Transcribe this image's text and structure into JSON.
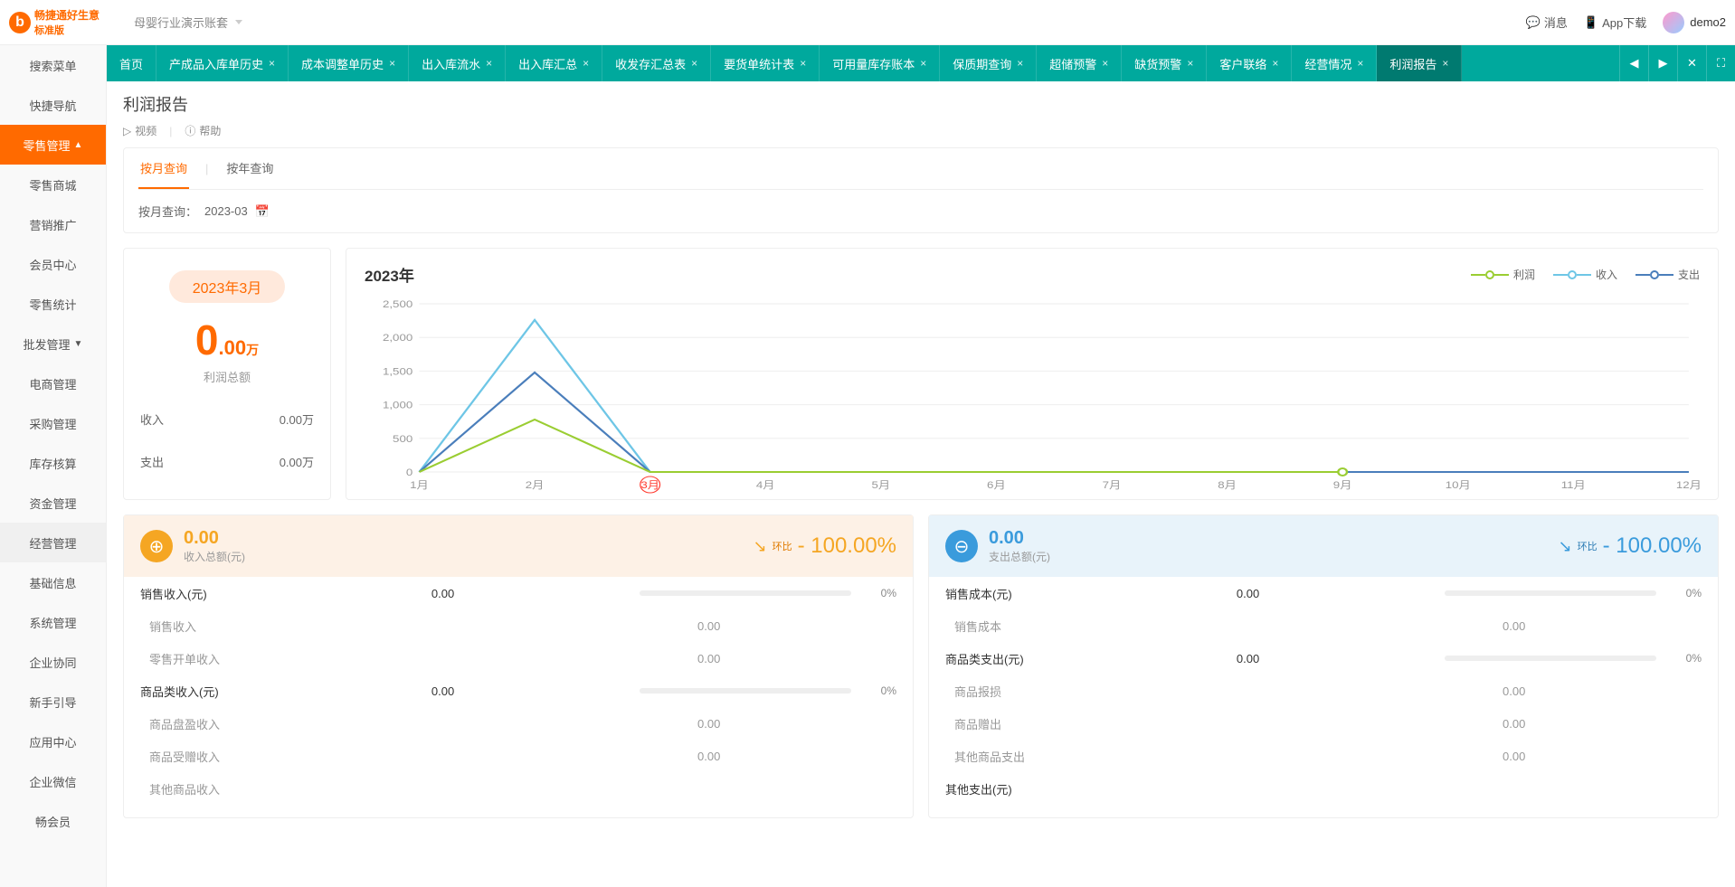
{
  "header": {
    "brand_main": "畅捷通好生意",
    "brand_sub": "标准版",
    "account": "母婴行业演示账套",
    "msg": "消息",
    "app": "App下载",
    "user": "demo2"
  },
  "sidebar": {
    "items": [
      {
        "label": "搜索菜单"
      },
      {
        "label": "快捷导航"
      },
      {
        "label": "零售管理",
        "active": true,
        "caret": "▲"
      },
      {
        "label": "零售商城"
      },
      {
        "label": "营销推广"
      },
      {
        "label": "会员中心"
      },
      {
        "label": "零售统计"
      },
      {
        "label": "批发管理",
        "caret": "▼"
      },
      {
        "label": "电商管理"
      },
      {
        "label": "采购管理"
      },
      {
        "label": "库存核算"
      },
      {
        "label": "资金管理"
      },
      {
        "label": "经营管理",
        "active_sub": true
      },
      {
        "label": "基础信息"
      },
      {
        "label": "系统管理"
      },
      {
        "label": "企业协同"
      },
      {
        "label": "新手引导"
      },
      {
        "label": "应用中心"
      },
      {
        "label": "企业微信"
      },
      {
        "label": "畅会员"
      }
    ]
  },
  "tabs": {
    "items": [
      {
        "label": "首页",
        "closable": false
      },
      {
        "label": "产成品入库单历史",
        "closable": true
      },
      {
        "label": "成本调整单历史",
        "closable": true
      },
      {
        "label": "出入库流水",
        "closable": true
      },
      {
        "label": "出入库汇总",
        "closable": true
      },
      {
        "label": "收发存汇总表",
        "closable": true
      },
      {
        "label": "要货单统计表",
        "closable": true
      },
      {
        "label": "可用量库存账本",
        "closable": true
      },
      {
        "label": "保质期查询",
        "closable": true
      },
      {
        "label": "超储预警",
        "closable": true
      },
      {
        "label": "缺货预警",
        "closable": true
      },
      {
        "label": "客户联络",
        "closable": true
      },
      {
        "label": "经营情况",
        "closable": true
      },
      {
        "label": "利润报告",
        "closable": true,
        "highlighted": true
      }
    ]
  },
  "page": {
    "title": "利润报告",
    "video": "视频",
    "help": "帮助"
  },
  "query": {
    "tab_month": "按月查询",
    "tab_year": "按年查询",
    "month_label": "按月查询：",
    "month_value": "2023-03"
  },
  "stat": {
    "period": "2023年3月",
    "big_int": "0",
    "big_dec": ".00",
    "big_unit": "万",
    "profit_label": "利润总额",
    "income_label": "收入",
    "income_value": "0.00万",
    "expense_label": "支出",
    "expense_value": "0.00万"
  },
  "chart": {
    "title": "2023年",
    "legend": {
      "profit": "利润",
      "income": "收入",
      "expense": "支出"
    },
    "colors": {
      "profit": "#9acd32",
      "income": "#6ec6e6",
      "expense": "#4a7ebb",
      "grid": "#eeeeee",
      "axis_text": "#999999"
    },
    "ymax": 2500,
    "ytick_step": 500,
    "yticks": [
      "0",
      "500",
      "1,000",
      "1,500",
      "2,000",
      "2,500"
    ],
    "xticks": [
      "1月",
      "2月",
      "3月",
      "4月",
      "5月",
      "6月",
      "7月",
      "8月",
      "9月",
      "10月",
      "11月",
      "12月"
    ],
    "current_x_index": 2,
    "series": {
      "profit": [
        0,
        780,
        0,
        0,
        0,
        0,
        0,
        0,
        0,
        0,
        0,
        0
      ],
      "income": [
        0,
        2260,
        0,
        0,
        0,
        0,
        0,
        0,
        0,
        0,
        0,
        0
      ],
      "expense": [
        0,
        1480,
        0,
        0,
        0,
        0,
        0,
        0,
        0,
        0,
        0,
        0
      ]
    },
    "profit_last_point_index": 8
  },
  "income_panel": {
    "amount": "0.00",
    "label": "收入总额(元)",
    "change": "- 100.00%",
    "hb": "环比",
    "rows": [
      {
        "name": "销售收入(元)",
        "val": "0.00",
        "pct": "0%",
        "bar": true
      },
      {
        "name": "销售收入",
        "val": "0.00",
        "sub": true
      },
      {
        "name": "零售开单收入",
        "val": "0.00",
        "sub": true
      },
      {
        "name": "商品类收入(元)",
        "val": "0.00",
        "pct": "0%",
        "bar": true
      },
      {
        "name": "商品盘盈收入",
        "val": "0.00",
        "sub": true
      },
      {
        "name": "商品受赠收入",
        "val": "0.00",
        "sub": true
      },
      {
        "name": "其他商品收入",
        "val": "",
        "sub": true
      }
    ]
  },
  "expense_panel": {
    "amount": "0.00",
    "label": "支出总额(元)",
    "change": "- 100.00%",
    "hb": "环比",
    "rows": [
      {
        "name": "销售成本(元)",
        "val": "0.00",
        "pct": "0%",
        "bar": true
      },
      {
        "name": "销售成本",
        "val": "0.00",
        "sub": true
      },
      {
        "name": "商品类支出(元)",
        "val": "0.00",
        "pct": "0%",
        "bar": true
      },
      {
        "name": "商品报损",
        "val": "0.00",
        "sub": true
      },
      {
        "name": "商品赠出",
        "val": "0.00",
        "sub": true
      },
      {
        "name": "其他商品支出",
        "val": "0.00",
        "sub": true
      },
      {
        "name": "其他支出(元)",
        "val": "",
        "sub": false
      }
    ]
  }
}
